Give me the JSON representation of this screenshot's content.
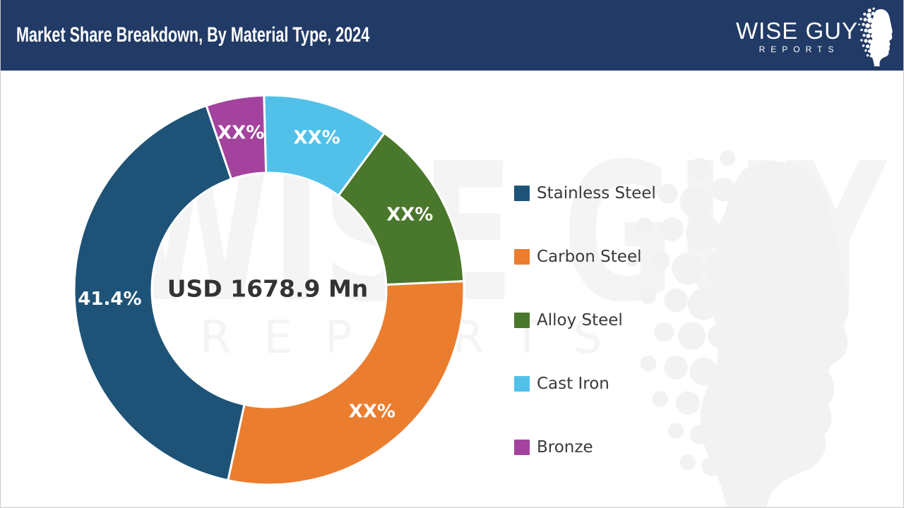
{
  "header": {
    "title": "Market Share Breakdown, By Material Type, 2024",
    "logo": {
      "line1": "WISE GUY",
      "line2": "REPORTS"
    }
  },
  "watermark": {
    "line1": "WISE GUY",
    "line2": "REPORTS"
  },
  "chart_data": {
    "type": "donut",
    "title": "Market Share Breakdown, By Material Type, 2024",
    "center_label": "USD 1678.9 Mn",
    "legend_position": "right",
    "start_angle_deg": -1.5,
    "direction": "clockwise",
    "categories": [
      "Stainless Steel",
      "Carbon Steel",
      "Alloy Steel",
      "Cast Iron",
      "Bronze"
    ],
    "slices": [
      {
        "name": "Stainless Steel",
        "value_pct": 41.4,
        "label": "41.4%",
        "color": "#1E5377"
      },
      {
        "name": "Carbon Steel",
        "value_pct": 29.1,
        "label": "XX%",
        "color": "#EB7D2F"
      },
      {
        "name": "Alloy Steel",
        "value_pct": 14.2,
        "label": "XX%",
        "color": "#49772B"
      },
      {
        "name": "Cast Iron",
        "value_pct": 10.5,
        "label": "XX%",
        "color": "#51C1E9"
      },
      {
        "name": "Bronze",
        "value_pct": 4.8,
        "label": "XX%",
        "color": "#A3439E"
      }
    ],
    "draw_order": [
      "Cast Iron",
      "Alloy Steel",
      "Carbon Steel",
      "Stainless Steel",
      "Bronze"
    ],
    "colors": {
      "header_bar": "#213A66",
      "center_text": "#333333",
      "legend_text": "#3a3a3a",
      "slice_gap": "#ffffff",
      "watermark": "#f2f2f2"
    }
  }
}
